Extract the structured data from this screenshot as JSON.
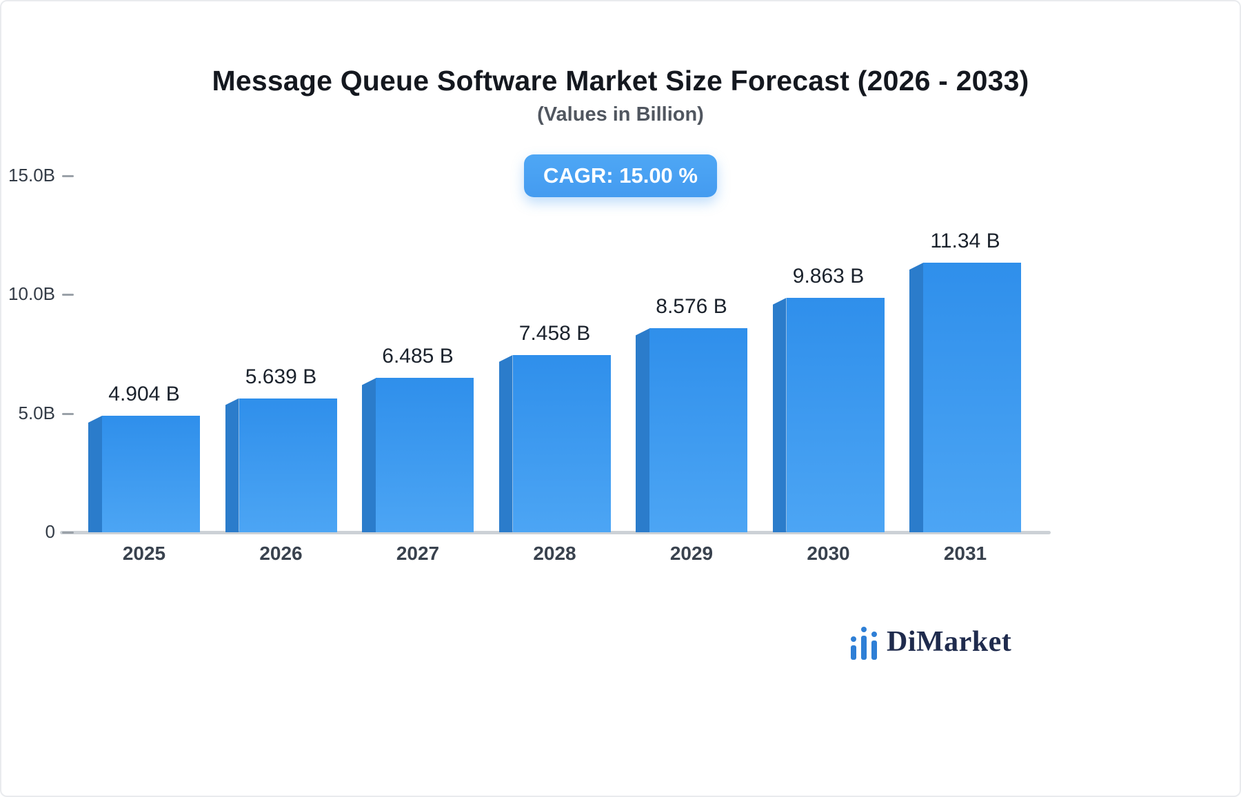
{
  "title": "Message Queue Software Market Size Forecast (2026 - 2033)",
  "subtitle": "(Values in Billion)",
  "badge": {
    "label": "CAGR: 15.00 %"
  },
  "brand": {
    "name": "DiMarket",
    "icon": "bar-chart-icon",
    "icon_color": "#2e7fd6",
    "text_color": "#1f2b4d"
  },
  "chart_data": {
    "type": "bar",
    "title": "Message Queue Software Market Size Forecast (2026 - 2033)",
    "subtitle": "(Values in Billion)",
    "cagr_label": "CAGR: 15.00 %",
    "categories": [
      "2025",
      "2026",
      "2027",
      "2028",
      "2029",
      "2030",
      "2031"
    ],
    "values": [
      4.904,
      5.639,
      6.485,
      7.458,
      8.576,
      9.863,
      11.34
    ],
    "value_labels": [
      "4.904 B",
      "5.639 B",
      "6.485 B",
      "7.458 B",
      "8.576 B",
      "9.863 B",
      "11.34 B"
    ],
    "ylim": [
      0,
      15
    ],
    "yticks": [
      0,
      5,
      10,
      15
    ],
    "ytick_labels": [
      "0",
      "5.0B",
      "10.0B",
      "15.0B"
    ],
    "grid": false,
    "legend": "none",
    "bar_color": "#3e9af0",
    "bar_side_color": "#2b7ccb"
  }
}
